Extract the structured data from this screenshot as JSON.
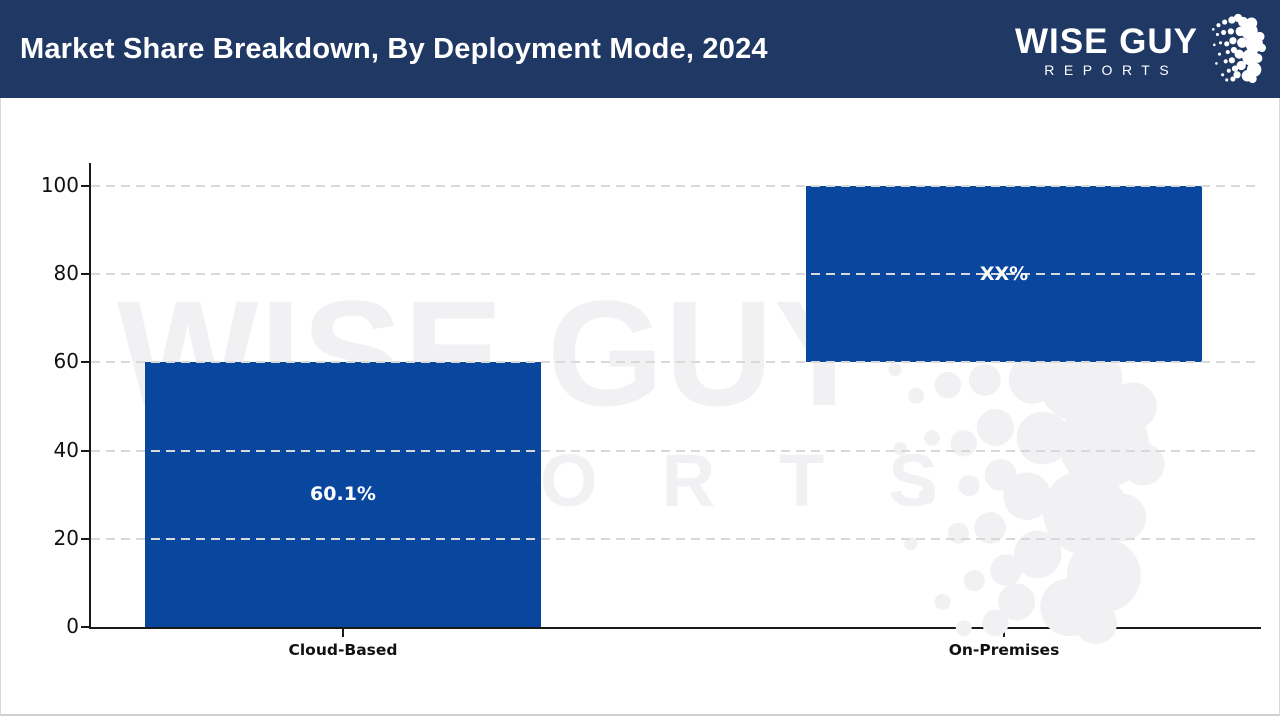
{
  "header": {
    "title": "Market Share Breakdown, By Deployment Mode, 2024",
    "logo": {
      "line1": "WISE GUY",
      "line2": "REPORTS",
      "face_icon": "dotted-face-profile-icon"
    }
  },
  "watermark": {
    "line1": "WISE GUY",
    "line2": "REPORTS"
  },
  "colors": {
    "header_bg": "#1f3864",
    "title_text": "#ffffff",
    "bar": "#09479e",
    "bar_label_text": "#ffffff",
    "grid": "#d9d9d9",
    "axis": "#1a1a1a",
    "watermark": "#f1f1f3"
  },
  "chart_data": {
    "type": "bar",
    "title": "Market Share Breakdown, By Deployment Mode, 2024",
    "categories": [
      "Cloud-Based",
      "On-Premises"
    ],
    "bars": [
      {
        "category": "Cloud-Based",
        "start": 0,
        "end": 60.1,
        "label": "60.1%"
      },
      {
        "category": "On-Premises",
        "start": 60,
        "end": 100,
        "label": "XX%"
      }
    ],
    "xlabel": "",
    "ylabel": "",
    "ylim": [
      0,
      105
    ],
    "yticks": [
      0,
      20,
      40,
      60,
      80,
      100
    ],
    "grid": "horizontal dashed, drawn above bars",
    "legend": "none"
  }
}
